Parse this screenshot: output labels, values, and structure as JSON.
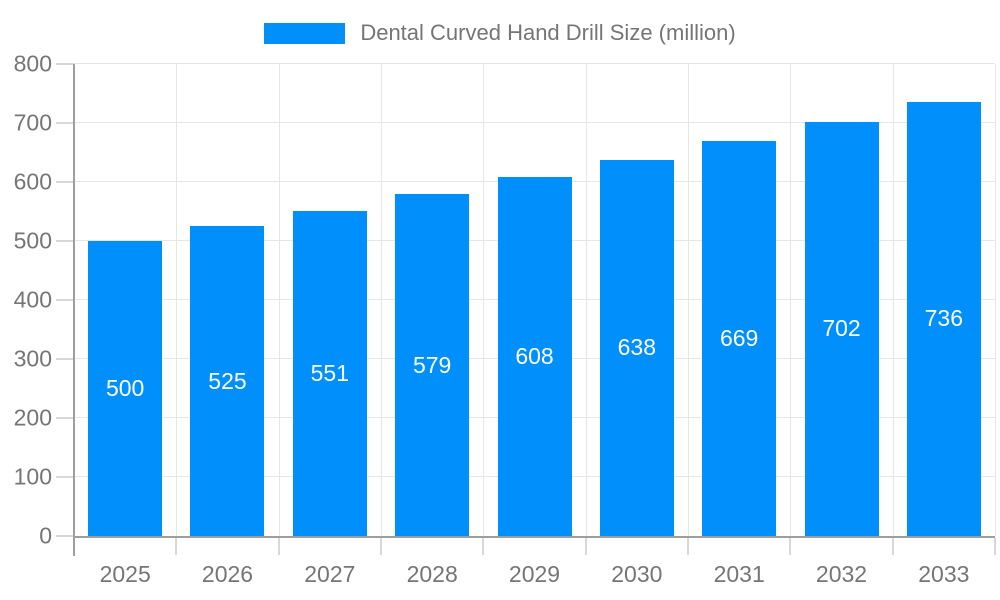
{
  "chart_data": {
    "type": "bar",
    "title": "Dental Curved Hand Drill Size (million)",
    "categories": [
      "2025",
      "2026",
      "2027",
      "2028",
      "2029",
      "2030",
      "2031",
      "2032",
      "2033"
    ],
    "values": [
      500,
      525,
      551,
      579,
      608,
      638,
      669,
      702,
      736
    ],
    "xlabel": "",
    "ylabel": "",
    "ylim": [
      0,
      800
    ],
    "ytick_step": 100,
    "yticks": [
      "0",
      "100",
      "200",
      "300",
      "400",
      "500",
      "600",
      "700",
      "800"
    ],
    "grid": true,
    "legend_position": "top",
    "colors": {
      "bar": "#008FFB",
      "grid": "#E6E6E6",
      "axis_line": "#9E9E9E",
      "tick": "#D8D8D8",
      "axis_label": "#757575",
      "value_label": "#FFFFFF"
    }
  }
}
